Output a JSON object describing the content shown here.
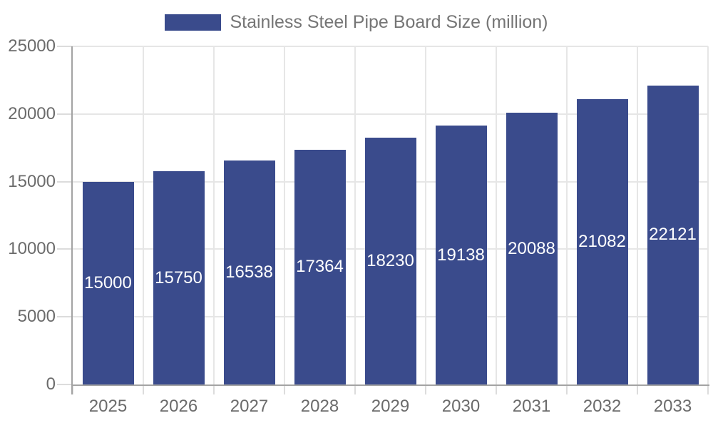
{
  "legend": {
    "label": "Stainless Steel Pipe Board Size (million)"
  },
  "chart_data": {
    "type": "bar",
    "title": "Stainless Steel Pipe Board Size (million)",
    "categories": [
      "2025",
      "2026",
      "2027",
      "2028",
      "2029",
      "2030",
      "2031",
      "2032",
      "2033"
    ],
    "values": [
      15000,
      15750,
      16538,
      17364,
      18230,
      19138,
      20088,
      21082,
      22121
    ],
    "series": [
      {
        "name": "Stainless Steel Pipe Board Size (million)",
        "values": [
          15000,
          15750,
          16538,
          17364,
          18230,
          19138,
          20088,
          21082,
          22121
        ]
      }
    ],
    "xlabel": "",
    "ylabel": "",
    "ylim": [
      0,
      25000
    ],
    "yticks": [
      0,
      5000,
      10000,
      15000,
      20000,
      25000
    ],
    "grid": true,
    "legend_position": "top-center",
    "value_label_position": "inside-center",
    "bar_color": "#3A4B8C",
    "value_label_color": "#FFFFFF"
  },
  "colors": {
    "background": "#FFFFFF",
    "bar": "#3A4B8C",
    "grid_line": "#E6E6E6",
    "tick_mark": "#DCDCDC",
    "axis_border": "#A3A3A3",
    "axis_text": "#6B6B6B",
    "legend_text": "#757575",
    "value_label_text": "#FFFFFF"
  }
}
